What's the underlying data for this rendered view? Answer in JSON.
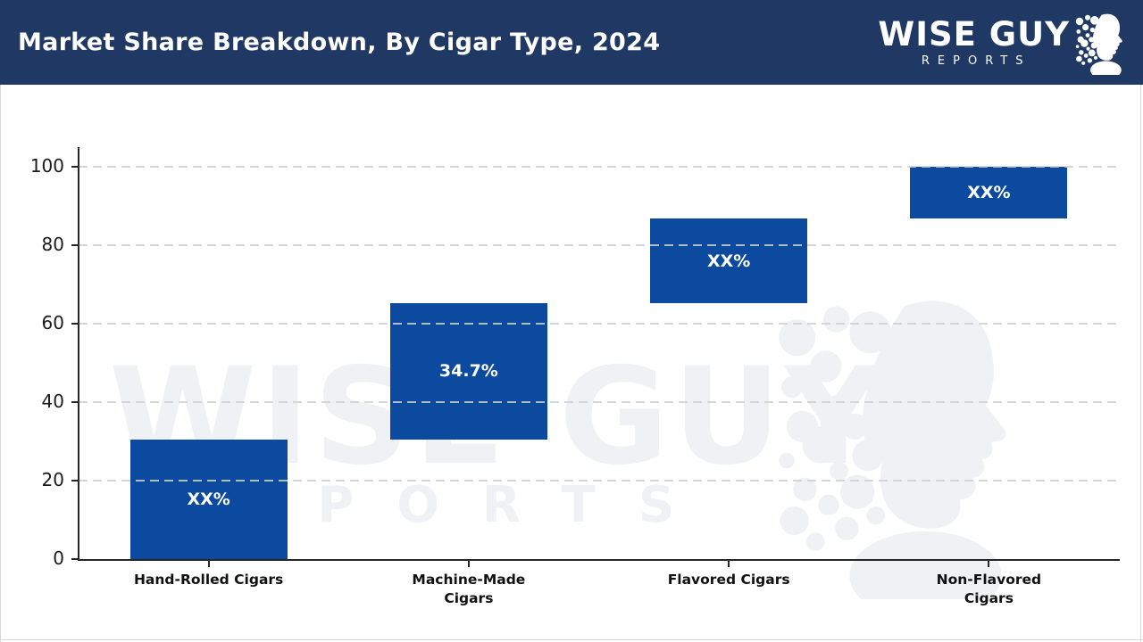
{
  "header": {
    "title": "Market Share Breakdown, By Cigar Type, 2024",
    "logo": {
      "line1": "WISE GUY",
      "line2": "REPORTS"
    }
  },
  "watermark": {
    "line1": "WISE GUY",
    "line2": "REPORTS"
  },
  "colors": {
    "header_bg": "#1f3864",
    "bar": "#0b4a9e",
    "bar_label_text": "#ffffff",
    "grid": "#cfcfcf",
    "axis": "#262626",
    "tick_text": "#1a1a1a",
    "watermark": "#f0f1f4"
  },
  "chart_data": {
    "type": "bar",
    "subtype": "floating-waterfall",
    "title": "Market Share Breakdown, By Cigar Type, 2024",
    "xlabel": "",
    "ylabel": "",
    "ylim": [
      0,
      105
    ],
    "grid": "dashed-horizontal",
    "legend": "none",
    "yticks": [
      0,
      20,
      40,
      60,
      80,
      100
    ],
    "categories": [
      "Hand-Rolled Cigars",
      "Machine-Made Cigars",
      "Flavored Cigars",
      "Non-Flavored Cigars"
    ],
    "segments": [
      {
        "category": "Hand-Rolled Cigars",
        "tick_label_lines": [
          "Hand-Rolled Cigars"
        ],
        "start": 0,
        "end": 30.5,
        "value_pct": 30.5,
        "label": "XX%"
      },
      {
        "category": "Machine-Made Cigars",
        "tick_label_lines": [
          "Machine-Made",
          "Cigars"
        ],
        "start": 30.5,
        "end": 65.2,
        "value_pct": 34.7,
        "label": "34.7%"
      },
      {
        "category": "Flavored Cigars",
        "tick_label_lines": [
          "Flavored Cigars"
        ],
        "start": 65.2,
        "end": 86.8,
        "value_pct": 21.6,
        "label": "XX%"
      },
      {
        "category": "Non-Flavored Cigars",
        "tick_label_lines": [
          "Non-Flavored",
          "Cigars"
        ],
        "start": 86.8,
        "end": 100,
        "value_pct": 13.2,
        "label": "XX%"
      }
    ]
  }
}
